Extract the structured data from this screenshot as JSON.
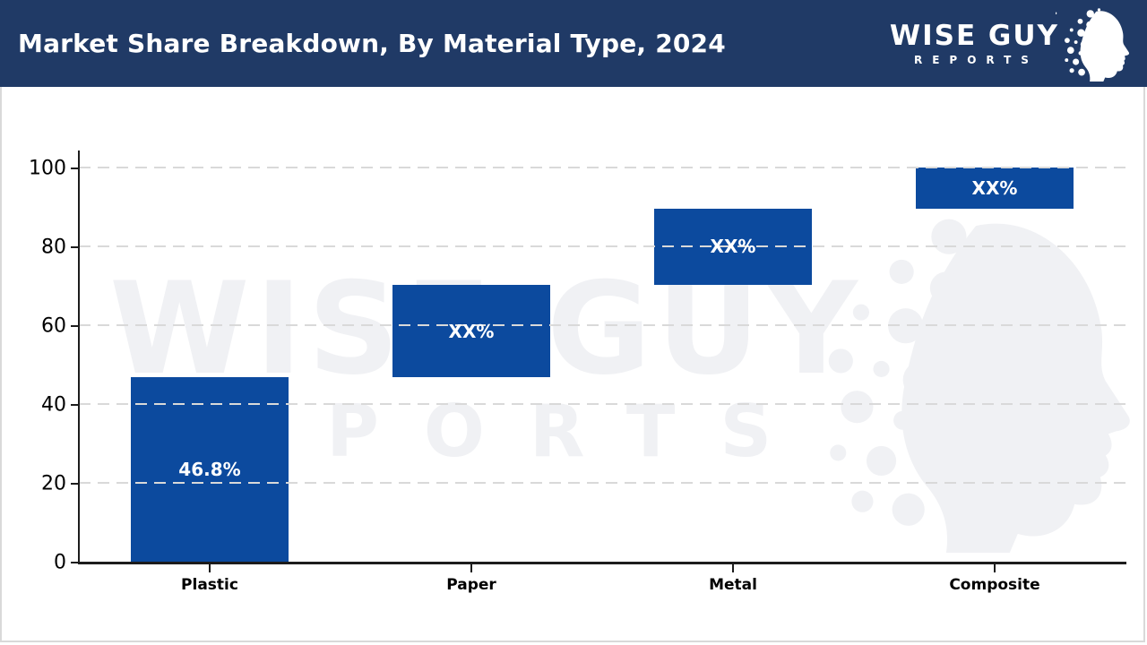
{
  "header": {
    "title": "Market Share Breakdown, By Material Type, 2024",
    "logo": {
      "line1": "WISE GUY",
      "line2": "REPORTS",
      "head_icon": "dotted-face-profile-icon"
    }
  },
  "watermark": {
    "line1": "WISE GUY",
    "line2": "REPORTS",
    "head_icon": "dotted-face-profile-icon"
  },
  "colors": {
    "header_bg": "#203A66",
    "bar": "#0C4A9E",
    "bar_label": "#ffffff",
    "grid": "#d9d9d9",
    "axis": "#1c1c1c",
    "watermark": "#f0f1f4",
    "frame_border": "#d9d9d9"
  },
  "chart_data": {
    "type": "bar",
    "subtype": "waterfall",
    "title": "Market Share Breakdown, By Material Type, 2024",
    "xlabel": "",
    "ylabel": "",
    "categories": [
      "Plastic",
      "Paper",
      "Metal",
      "Composite"
    ],
    "segments": [
      {
        "category": "Plastic",
        "start": 0,
        "end": 46.8,
        "label": "46.8%"
      },
      {
        "category": "Paper",
        "start": 46.8,
        "end": 70.2,
        "label": "XX%"
      },
      {
        "category": "Metal",
        "start": 70.2,
        "end": 89.6,
        "label": "XX%"
      },
      {
        "category": "Composite",
        "start": 89.6,
        "end": 100,
        "label": "XX%"
      }
    ],
    "yticks": [
      0,
      20,
      40,
      60,
      80,
      100
    ],
    "ylim": [
      0,
      105
    ],
    "grid": "horizontal-dashed",
    "grid_above_bars": true,
    "legend": "none"
  }
}
